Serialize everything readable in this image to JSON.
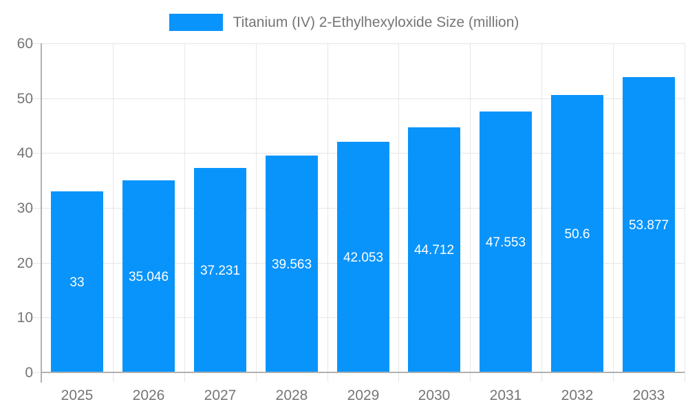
{
  "chart_data": {
    "type": "bar",
    "title": "Titanium (IV) 2-Ethylhexyloxide Size (million)",
    "categories": [
      "2025",
      "2026",
      "2027",
      "2028",
      "2029",
      "2030",
      "2031",
      "2032",
      "2033"
    ],
    "values": [
      33,
      35.046,
      37.231,
      39.563,
      42.053,
      44.712,
      47.553,
      50.6,
      53.877
    ],
    "value_labels": [
      "33",
      "35.046",
      "37.231",
      "39.563",
      "42.053",
      "44.712",
      "47.553",
      "50.6",
      "53.877"
    ],
    "xlabel": "",
    "ylabel": "",
    "ylim": [
      0,
      60
    ],
    "yticks": [
      0,
      10,
      20,
      30,
      40,
      50,
      60
    ],
    "ytick_labels": [
      "0",
      "10",
      "20",
      "30",
      "40",
      "50",
      "60"
    ],
    "grid": true,
    "legend_position": "top-center",
    "colors": {
      "bar": "#0994fb",
      "grid": "#e6e6e6",
      "axis": "#b0b0b0",
      "tick_text": "#757575",
      "legend_text": "#757575",
      "bar_label_text": "#ffffff",
      "background": "#ffffff"
    }
  }
}
